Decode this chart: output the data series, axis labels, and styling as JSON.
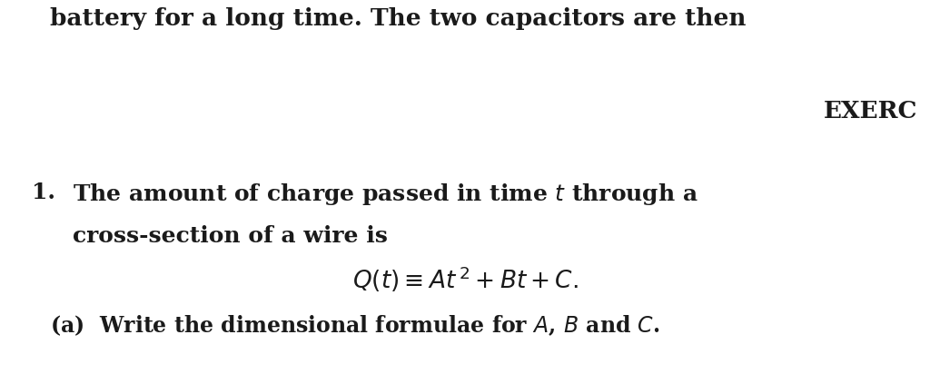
{
  "bg_color": "#ffffff",
  "top_text": "battery for a long time. The two capacitors are then",
  "exerc_label": "EXERC",
  "item_number": "1.",
  "line1_pre": "The amount of charge passed in time ",
  "line1_italic": "t",
  "line1_post": " through a",
  "line2": "cross-section of a wire is",
  "equation": "$Q(t) \\equiv At^{2} + Bt + C.$",
  "sub_line": "(a)  Write the dimensional formulae for $A$, $B$ and $C$.",
  "text_color": "#1a1a1a",
  "font_size_top": 19,
  "font_size_exerc": 19,
  "font_size_main": 18,
  "font_size_eq": 19,
  "font_size_sub": 17
}
